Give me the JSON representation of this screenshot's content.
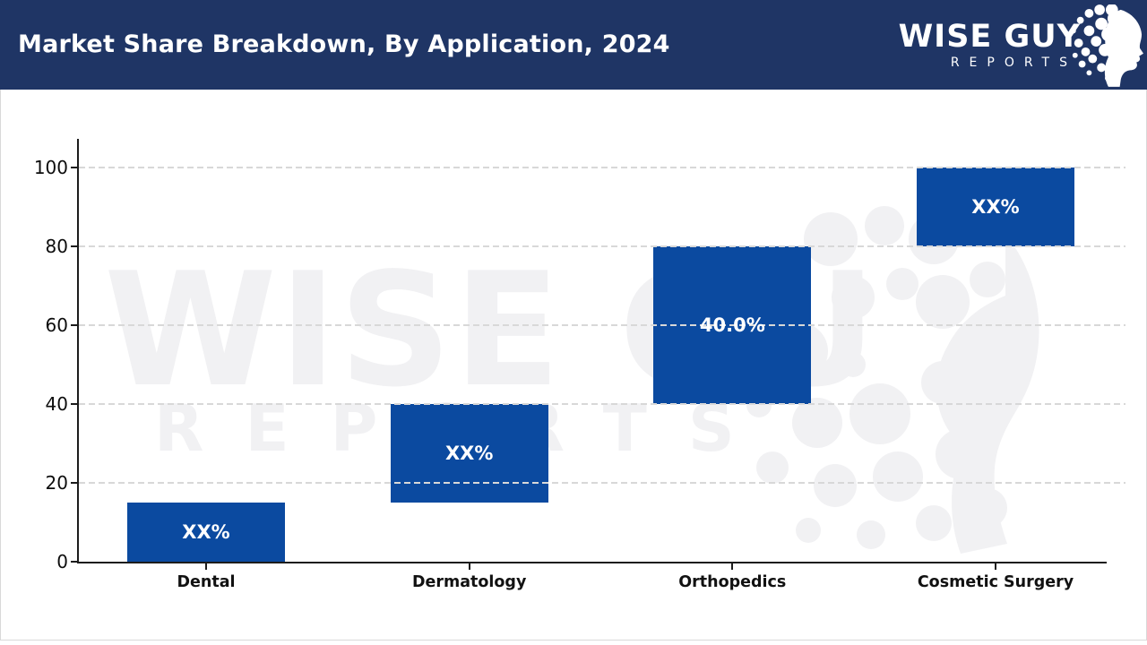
{
  "header": {
    "title": "Market Share Breakdown, By Application, 2024",
    "logo": {
      "name_line": "WISE GUY",
      "sub_line": "REPORTS"
    }
  },
  "watermark": {
    "big_text": "WISE GU",
    "sub_text": "REPORTS"
  },
  "colors": {
    "header_bg": "#1f3565",
    "bar_blue": "#0b4aa0",
    "axis_black": "#1c1c1c",
    "grid_gray": "#d8d8d8",
    "watermark_gray": "#f1f1f3"
  },
  "chart_data": {
    "type": "bar",
    "subtype": "floating-waterfall",
    "title": "Market Share Breakdown, By Application, 2024",
    "categories": [
      "Dental",
      "Dermatology",
      "Orthopedics",
      "Cosmetic Surgery"
    ],
    "segments": [
      {
        "category": "Dental",
        "from": 0,
        "to": 15,
        "label": "XX%"
      },
      {
        "category": "Dermatology",
        "from": 15,
        "to": 40,
        "label": "XX%"
      },
      {
        "category": "Orthopedics",
        "from": 40,
        "to": 80,
        "label": "40.0%"
      },
      {
        "category": "Cosmetic Surgery",
        "from": 80,
        "to": 100,
        "label": "XX%"
      }
    ],
    "segment_sizes_pct": [
      15,
      25,
      40,
      20
    ],
    "yticks": [
      0,
      20,
      40,
      60,
      80,
      100
    ],
    "ylim": [
      0,
      105
    ],
    "xlabel": "",
    "ylabel": "",
    "grid": "horizontal-dashed",
    "legend": "none",
    "bar_color": "#0b4aa0"
  }
}
